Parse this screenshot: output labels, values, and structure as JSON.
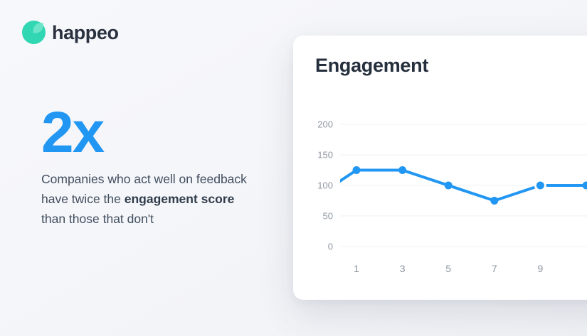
{
  "brand": {
    "name": "happeo",
    "logo_color": "#31d6b3",
    "logo_leaf_color": "#6ce4c9",
    "wordmark_color": "#2a3240"
  },
  "stat": {
    "value": "2x",
    "accent_color": "#2196f3",
    "line1": "Companies who act well on feedback",
    "line2_prefix": "have twice the ",
    "line2_bold": "engagement score",
    "line3": "than those that don't"
  },
  "card": {
    "title": "Engagement"
  },
  "chart_data": {
    "type": "line",
    "title": "Engagement",
    "x": [
      0,
      1,
      3,
      5,
      7,
      9,
      11
    ],
    "values": [
      100,
      125,
      125,
      100,
      75,
      100,
      100
    ],
    "marker_x": [
      1,
      3,
      5,
      7,
      9,
      11
    ],
    "highlight_x": 9,
    "xticks": [
      "1",
      "3",
      "5",
      "7",
      "9"
    ],
    "xtick_positions": [
      1,
      3,
      5,
      7,
      9
    ],
    "yticks": [
      "0",
      "50",
      "100",
      "150",
      "200"
    ],
    "ytick_values": [
      0,
      50,
      100,
      150,
      200
    ],
    "xlim": [
      0,
      11
    ],
    "ylim": [
      0,
      217
    ],
    "line_color": "#2196f3",
    "grid_color": "#f0f1f4",
    "axis_label_color": "#8f97a1",
    "grid": true,
    "legend": false
  }
}
